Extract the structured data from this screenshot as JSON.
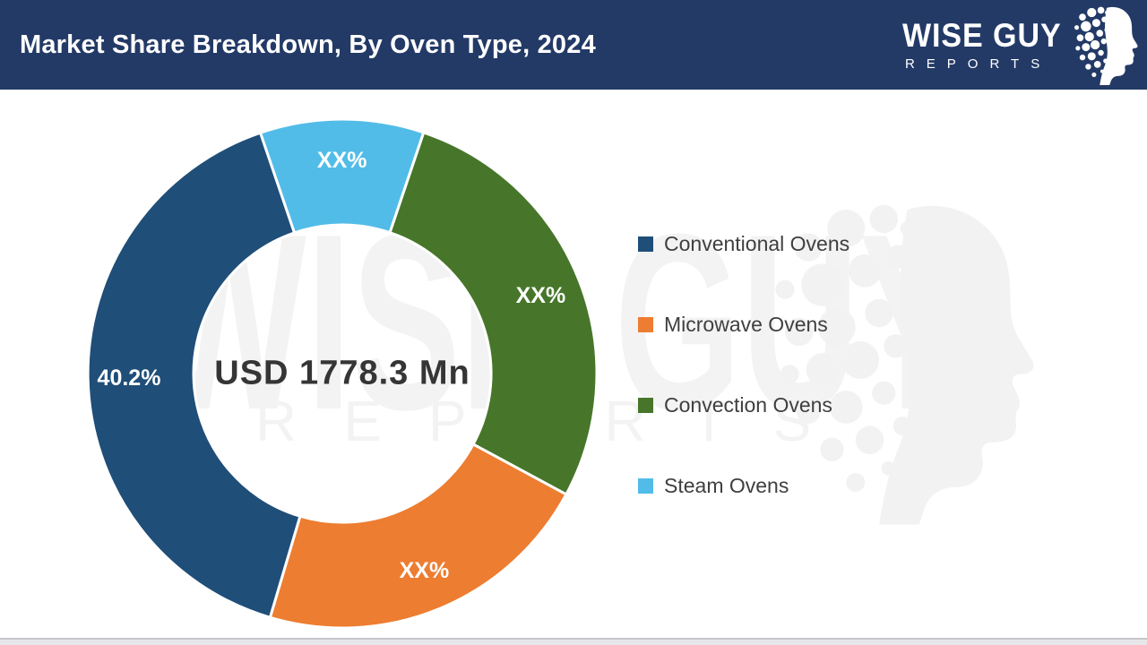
{
  "header": {
    "title": "Market Share Breakdown, By Oven Type, 2024",
    "logo": {
      "line1": "WISE GUY",
      "line2": "REPORTS"
    }
  },
  "watermark": {
    "line1": "WISE GUY",
    "line2": "REPORTS"
  },
  "chart_data": {
    "type": "pie",
    "donut": true,
    "title": "Market Share Breakdown, By Oven Type, 2024",
    "center_label": "USD 1778.3 Mn",
    "start_angle_deg": -18.8,
    "legend_position": "right",
    "segments": [
      {
        "name": "Steam Ovens",
        "display_label": "XX%",
        "percent_est": 10.4,
        "color": "#52bce8"
      },
      {
        "name": "Convection Ovens",
        "display_label": "XX%",
        "percent_est": 27.7,
        "color": "#47762a"
      },
      {
        "name": "Microwave Ovens",
        "display_label": "XX%",
        "percent_est": 21.7,
        "color": "#ed7d31"
      },
      {
        "name": "Conventional Ovens",
        "display_label": "40.2%",
        "percent_est": 40.2,
        "color": "#1f4e78"
      }
    ]
  },
  "legend": {
    "items": [
      {
        "label": "Conventional Ovens",
        "color": "#1f4e78"
      },
      {
        "label": "Microwave Ovens",
        "color": "#ed7d31"
      },
      {
        "label": "Convection Ovens",
        "color": "#47762a"
      },
      {
        "label": "Steam Ovens",
        "color": "#52bce8"
      }
    ]
  }
}
